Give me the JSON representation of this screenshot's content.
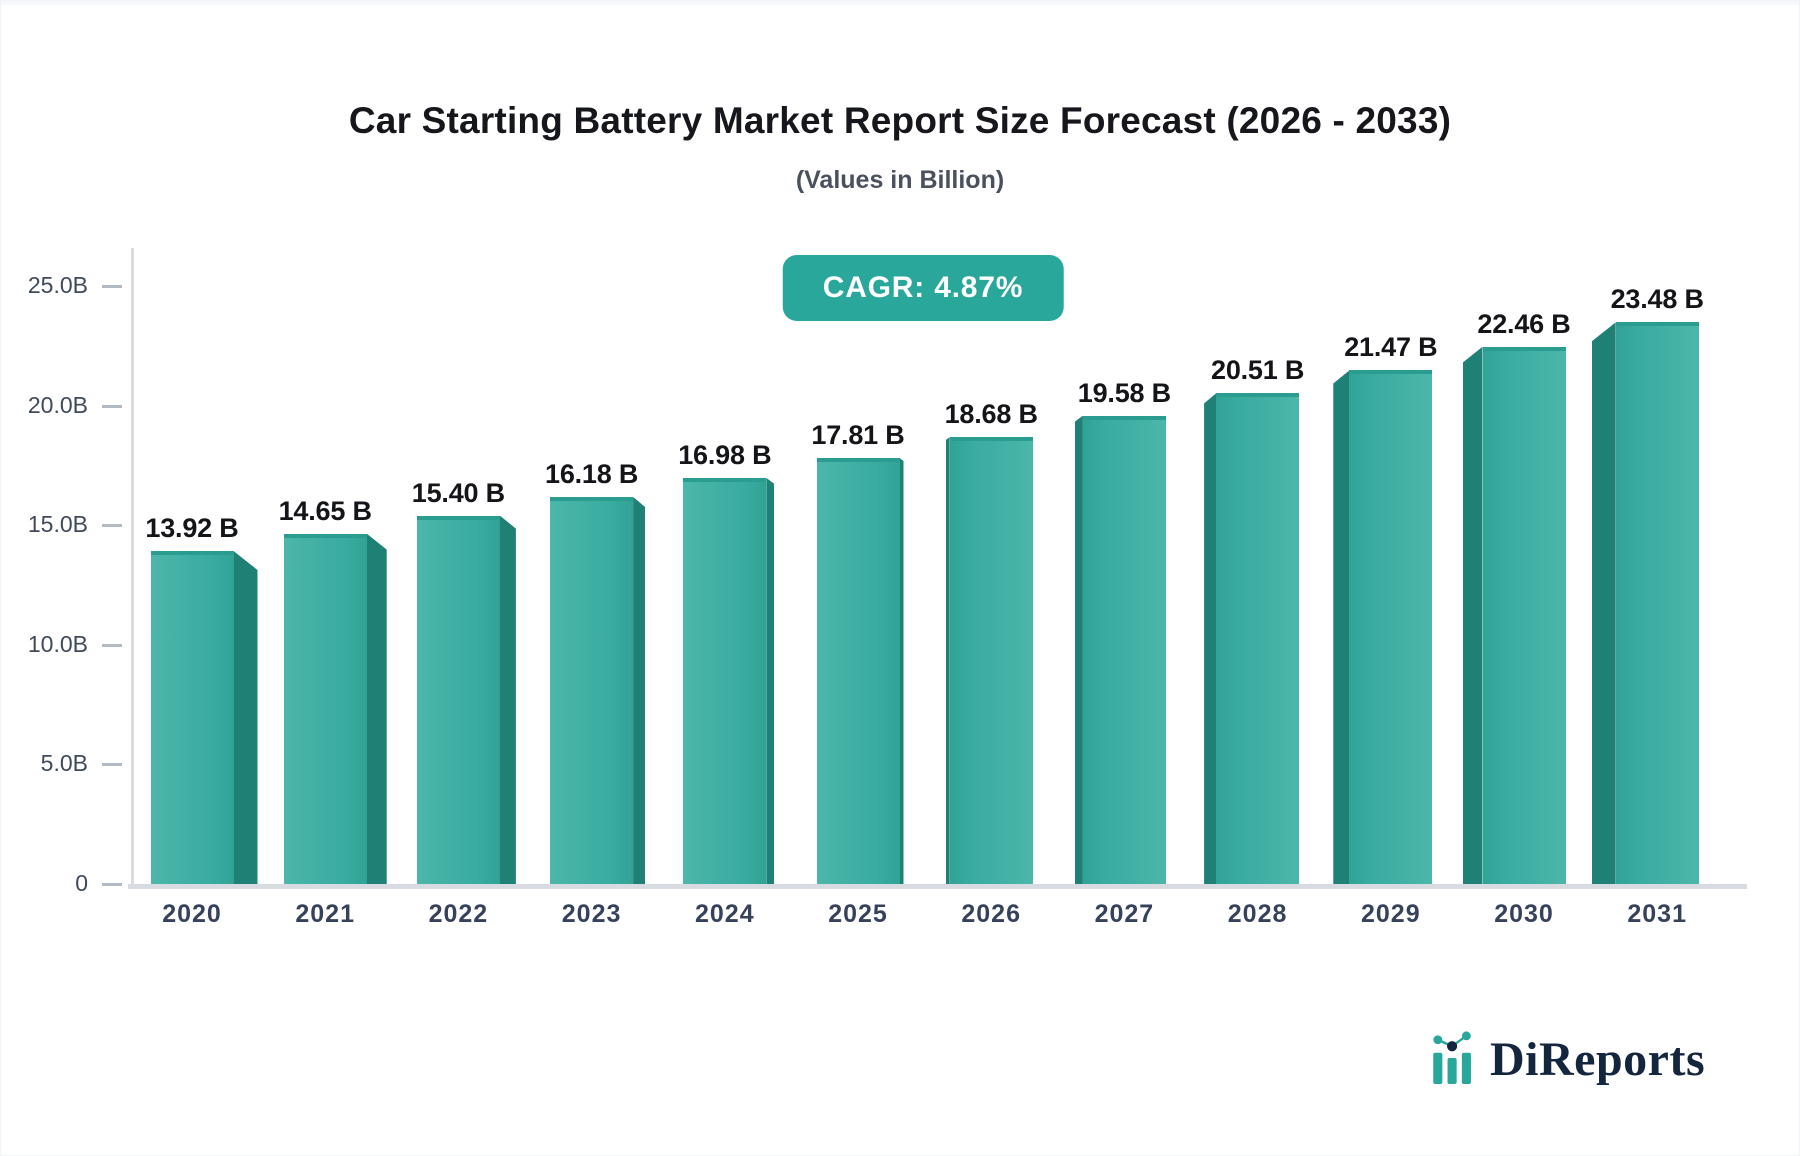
{
  "header": {
    "title": "Car Starting Battery Market Report Size Forecast (2026 - 2033)",
    "subtitle": "(Values in Billion)",
    "cagr_badge": "CAGR: 4.87%"
  },
  "chart_data": {
    "type": "bar",
    "style": "3d-columns",
    "title": "Car Starting Battery Market Report Size Forecast (2026 - 2033)",
    "subtitle": "(Values in Billion)",
    "cagr": "4.87%",
    "categories": [
      "2020",
      "2021",
      "2022",
      "2023",
      "2024",
      "2025",
      "2026",
      "2027",
      "2028",
      "2029",
      "2030",
      "2031"
    ],
    "values": [
      13.92,
      14.65,
      15.4,
      16.18,
      16.98,
      17.81,
      18.68,
      19.58,
      20.51,
      21.47,
      22.46,
      23.48
    ],
    "value_labels": [
      "13.92 B",
      "14.65 B",
      "15.40 B",
      "16.18 B",
      "16.98 B",
      "17.81 B",
      "18.68 B",
      "19.58 B",
      "20.51 B",
      "21.47 B",
      "22.46 B",
      "23.48 B"
    ],
    "xlabel": "",
    "ylabel": "",
    "ylim": [
      0,
      25
    ],
    "yticks": [
      {
        "value": 0,
        "label": "0"
      },
      {
        "value": 5,
        "label": "5.0B"
      },
      {
        "value": 10,
        "label": "10.0B"
      },
      {
        "value": 15,
        "label": "15.0B"
      },
      {
        "value": 20,
        "label": "20.0B"
      },
      {
        "value": 25,
        "label": "25.0B"
      }
    ],
    "grid": false,
    "legend": false
  },
  "logo": {
    "text": "DiReports",
    "icon": "bar-line-chart-icon"
  },
  "colors": {
    "accent-teal": "#2aa79b",
    "bar-side": "#1f8076",
    "bar-cap": "#2b9c90",
    "axis-line": "#d8dbe1",
    "tick": "#b3bac3",
    "axis-text": "#3f4a5a",
    "xaxis-text": "#36425c",
    "value-text": "#141519",
    "title-text": "#16171d",
    "subtitle-text": "#4a515e",
    "logo-navy": "#14253e"
  }
}
